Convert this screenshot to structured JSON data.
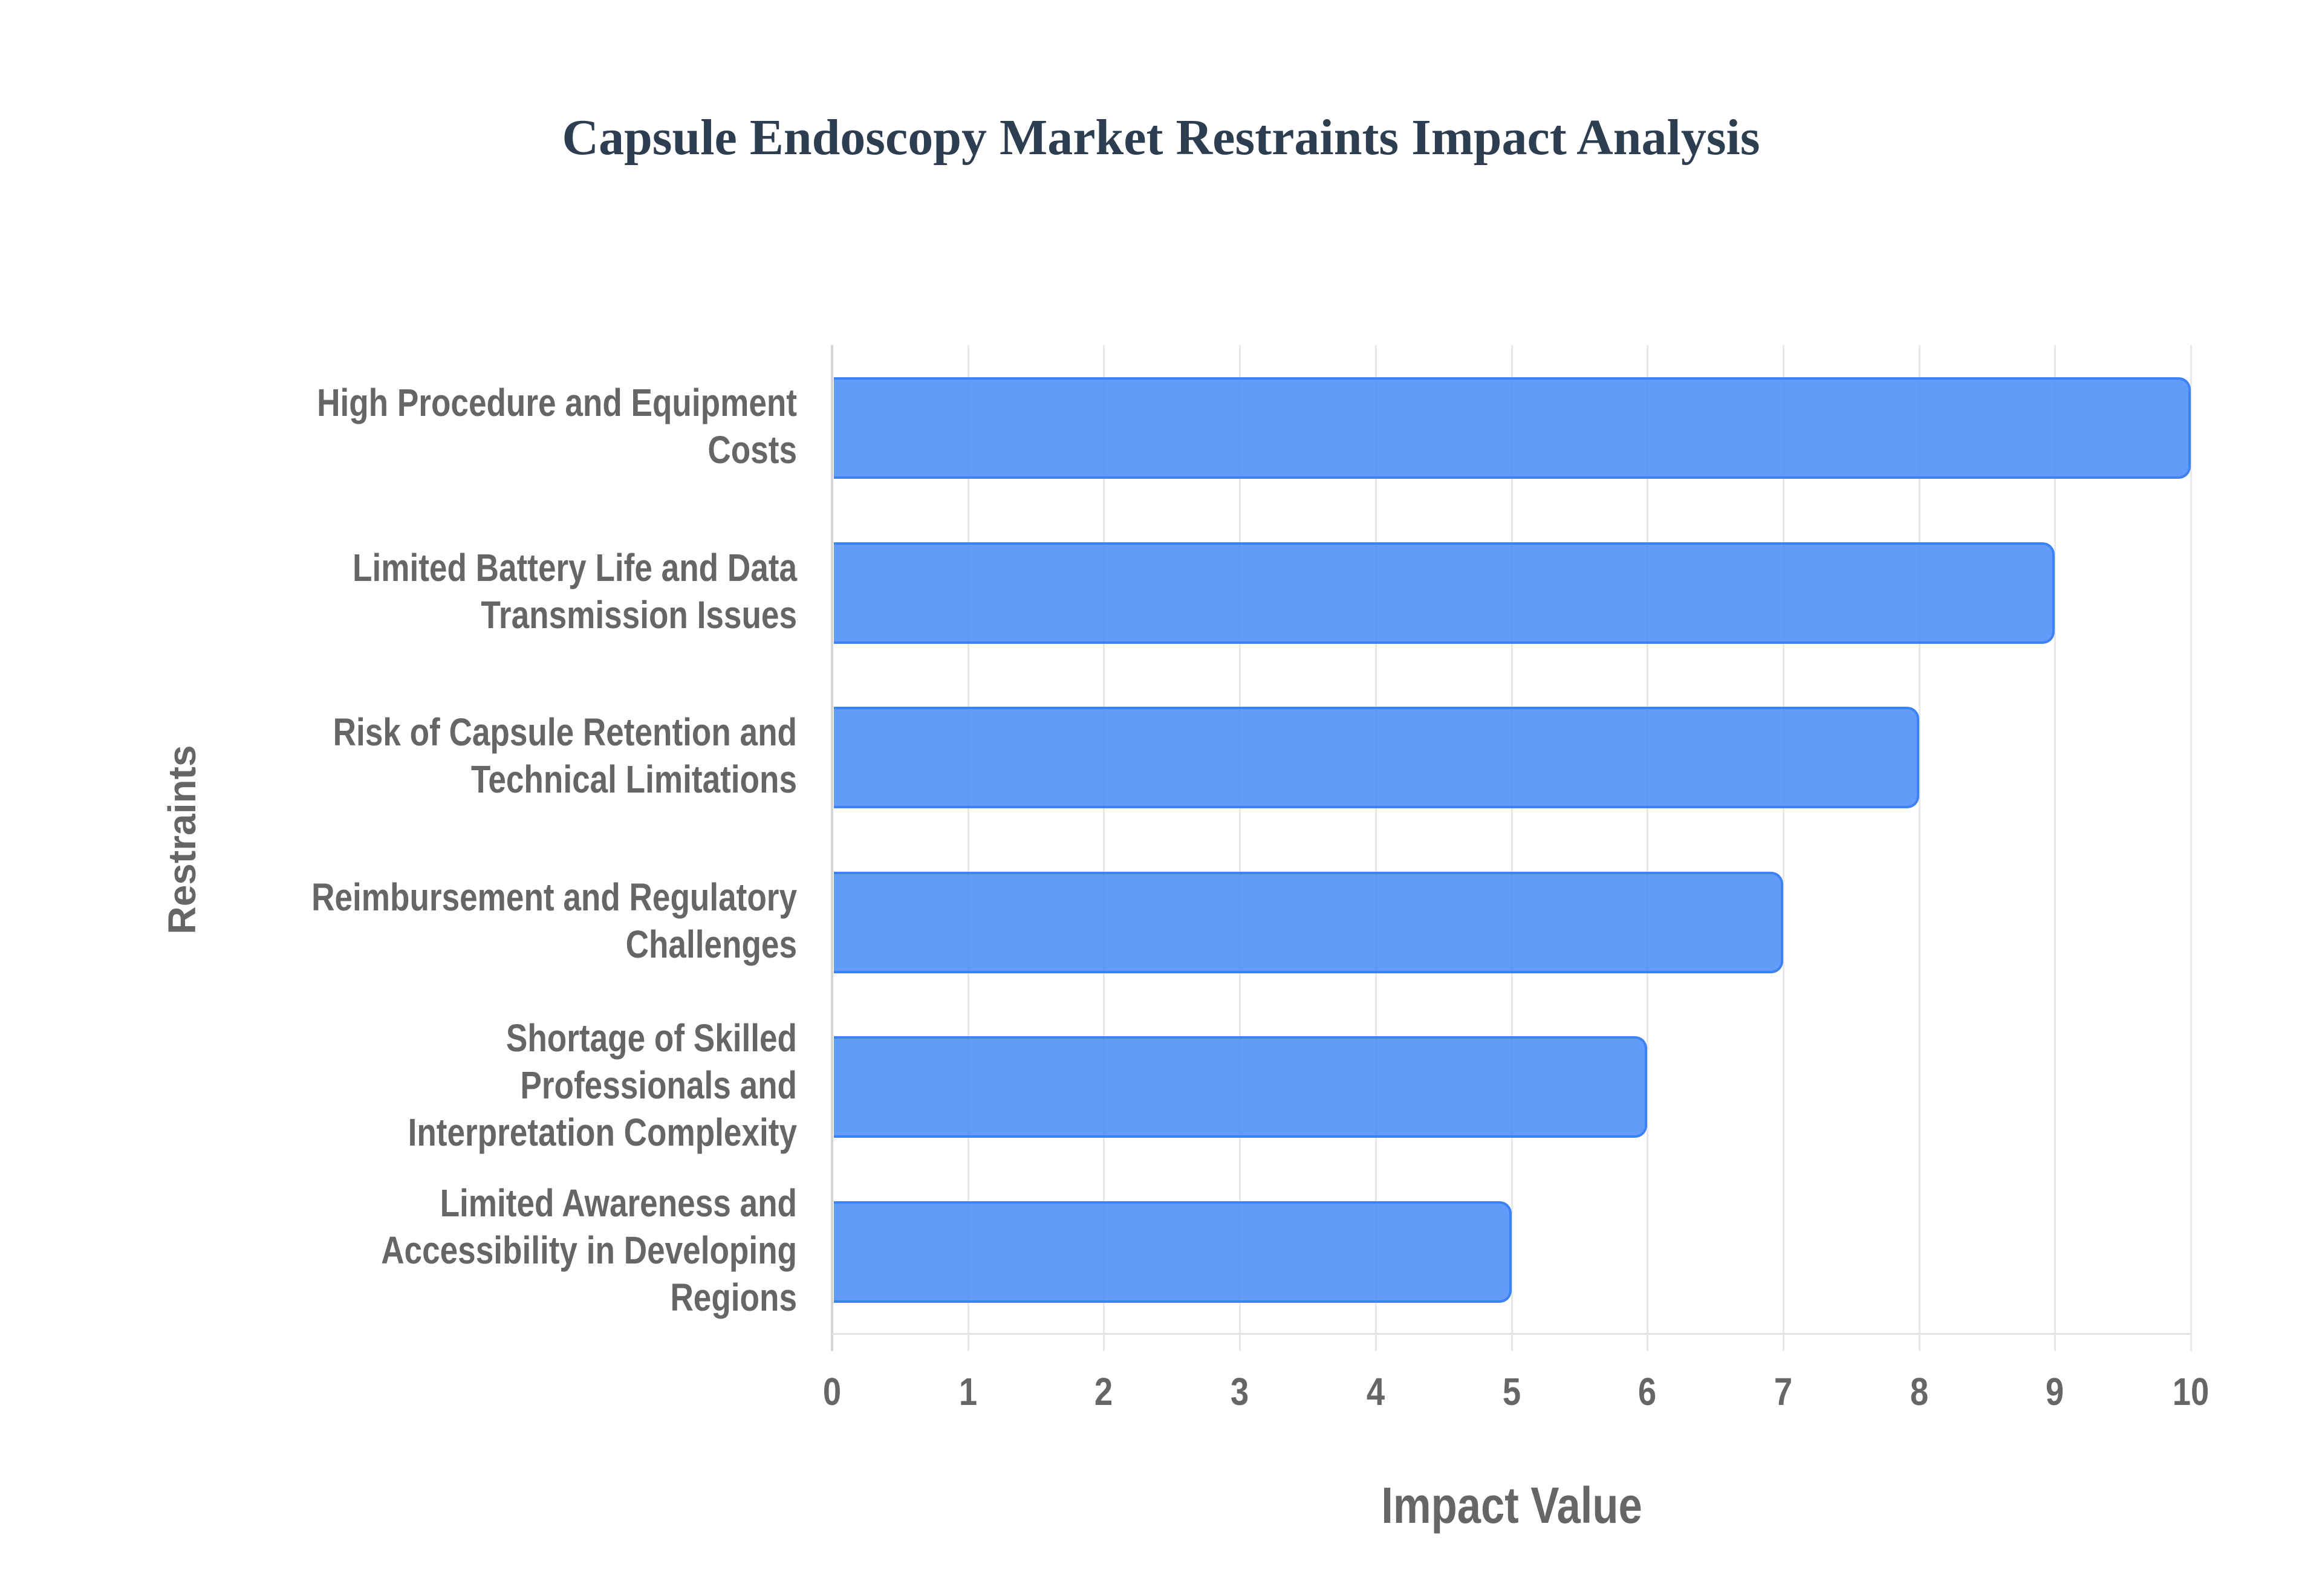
{
  "title": "Capsule Endoscopy Market Restraints Impact Analysis",
  "x_axis": {
    "title": "Impact Value",
    "ticks": [
      "0",
      "1",
      "2",
      "3",
      "4",
      "5",
      "6",
      "7",
      "8",
      "9",
      "10"
    ]
  },
  "y_axis": {
    "title": "Restraints"
  },
  "colors": {
    "bar_fill": "#3B82F6CC",
    "bar_border": "#3B82F6",
    "title": "#2C3E50",
    "axis_text": "#666666",
    "gridline": "#E8E8E8"
  },
  "bars": [
    {
      "label_lines": [
        "High Procedure and Equipment",
        "Costs"
      ],
      "value": 10
    },
    {
      "label_lines": [
        "Limited Battery Life and Data",
        "Transmission Issues"
      ],
      "value": 9
    },
    {
      "label_lines": [
        "Risk of Capsule Retention and",
        "Technical Limitations"
      ],
      "value": 8
    },
    {
      "label_lines": [
        "Reimbursement and Regulatory",
        "Challenges"
      ],
      "value": 7
    },
    {
      "label_lines": [
        "Shortage of Skilled",
        "Professionals and",
        "Interpretation Complexity"
      ],
      "value": 6
    },
    {
      "label_lines": [
        "Limited Awareness and",
        "Accessibility in Developing",
        "Regions"
      ],
      "value": 5
    }
  ],
  "chart_data": {
    "type": "bar",
    "orientation": "horizontal",
    "title": "Capsule Endoscopy Market Restraints Impact Analysis",
    "xlabel": "Impact Value",
    "ylabel": "Restraints",
    "categories": [
      "High Procedure and Equipment Costs",
      "Limited Battery Life and Data Transmission Issues",
      "Risk of Capsule Retention and Technical Limitations",
      "Reimbursement and Regulatory Challenges",
      "Shortage of Skilled Professionals and Interpretation Complexity",
      "Limited Awareness and Accessibility in Developing Regions"
    ],
    "values": [
      10,
      9,
      8,
      7,
      6,
      5
    ],
    "xlim": [
      0,
      10
    ],
    "xticks": [
      0,
      1,
      2,
      3,
      4,
      5,
      6,
      7,
      8,
      9,
      10
    ],
    "grid": {
      "x": true,
      "y": false
    },
    "legend": null,
    "bar_color": "#3B82F6"
  }
}
